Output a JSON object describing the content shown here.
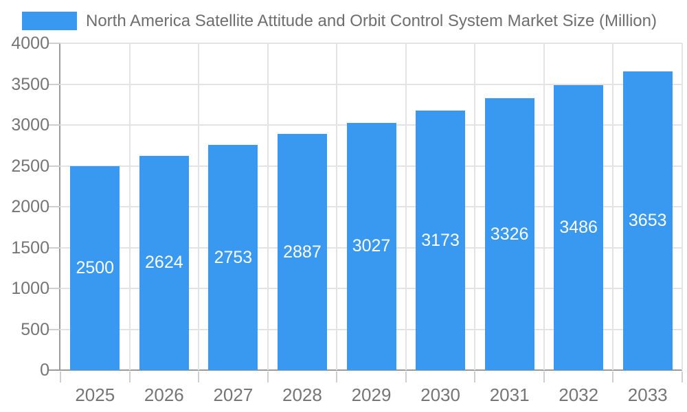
{
  "chart_data": {
    "type": "bar",
    "title": "North America Satellite Attitude and Orbit Control System Market Size (Million)",
    "categories": [
      "2025",
      "2026",
      "2027",
      "2028",
      "2029",
      "2030",
      "2031",
      "2032",
      "2033"
    ],
    "values": [
      2500,
      2624,
      2753,
      2887,
      3027,
      3173,
      3326,
      3486,
      3653
    ],
    "xlabel": "",
    "ylabel": "",
    "ylim": [
      0,
      4000
    ],
    "ytick_step": 500,
    "yticks": [
      0,
      500,
      1000,
      1500,
      2000,
      2500,
      3000,
      3500,
      4000
    ],
    "grid": true,
    "legend_position": "top-left",
    "value_label_position": "inside-center"
  },
  "colors": {
    "bar": "#3999F0",
    "bar_label": "#FFFFFF",
    "grid": "#E3E3E3",
    "axis_line": "#9A9A9A",
    "tick": "#CFCFCF",
    "axis_text": "#757575",
    "title_text": "#6E6E6E",
    "background": "#FFFFFF"
  }
}
